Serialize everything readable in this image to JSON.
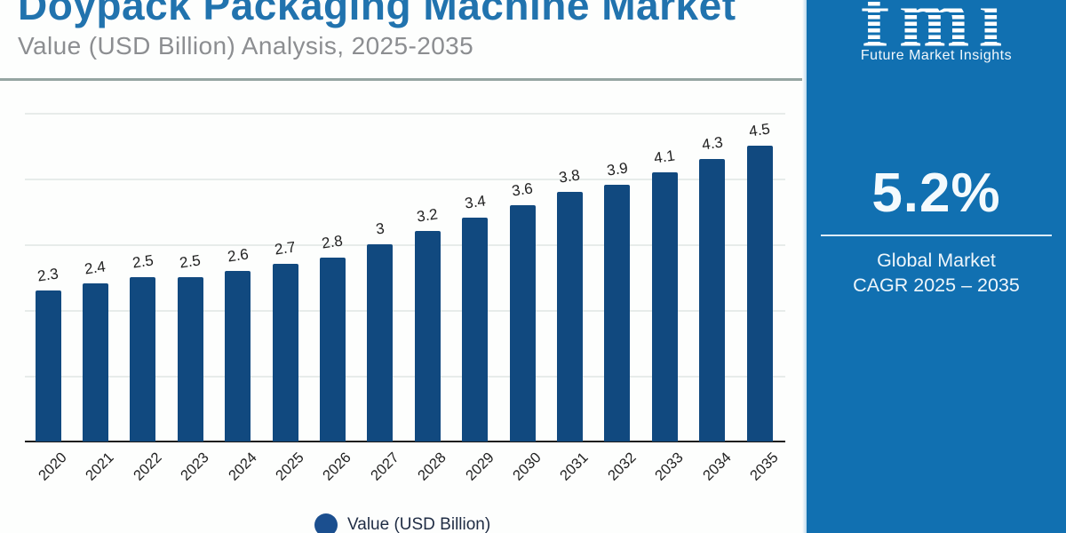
{
  "header": {
    "title": "Doypack Packaging Machine Market",
    "subtitle": "Value (USD Billion) Analysis, 2025-2035"
  },
  "side_panel": {
    "logo_text": "fmi",
    "logo_tagline": "Future Market Insights",
    "cagr_value": "5.2%",
    "cagr_caption_line1": "Global Market",
    "cagr_caption_line2": "CAGR 2025 – 2035",
    "panel_color": "#1170b1"
  },
  "chart_data": {
    "type": "bar",
    "title": "Doypack Packaging Machine Market",
    "subtitle": "Value (USD Billion) Analysis, 2025-2035",
    "categories": [
      "2020",
      "2021",
      "2022",
      "2023",
      "2024",
      "2025",
      "2026",
      "2027",
      "2028",
      "2029",
      "2030",
      "2031",
      "2032",
      "2033",
      "2034",
      "2035"
    ],
    "values": [
      2.3,
      2.4,
      2.5,
      2.5,
      2.6,
      2.7,
      2.8,
      3,
      3.2,
      3.4,
      3.6,
      3.8,
      3.9,
      4.1,
      4.3,
      4.5
    ],
    "data_labels": [
      "2.3",
      "2.4",
      "2.5",
      "2.5",
      "2.6",
      "2.7",
      "2.8",
      "3",
      "3.2",
      "3.4",
      "3.6",
      "3.8",
      "3.9",
      "4.1",
      "4.3",
      "4.5"
    ],
    "xlabel": "",
    "ylabel": "",
    "ylim": [
      0,
      5
    ],
    "grid": true,
    "gridline_step": 1,
    "y_tick_labels_visible": false,
    "legend": [
      "Value (USD Billion)"
    ],
    "legend_position": "bottom",
    "bar_color": "#11497f",
    "legend_marker_color": "#1b4f8f"
  }
}
